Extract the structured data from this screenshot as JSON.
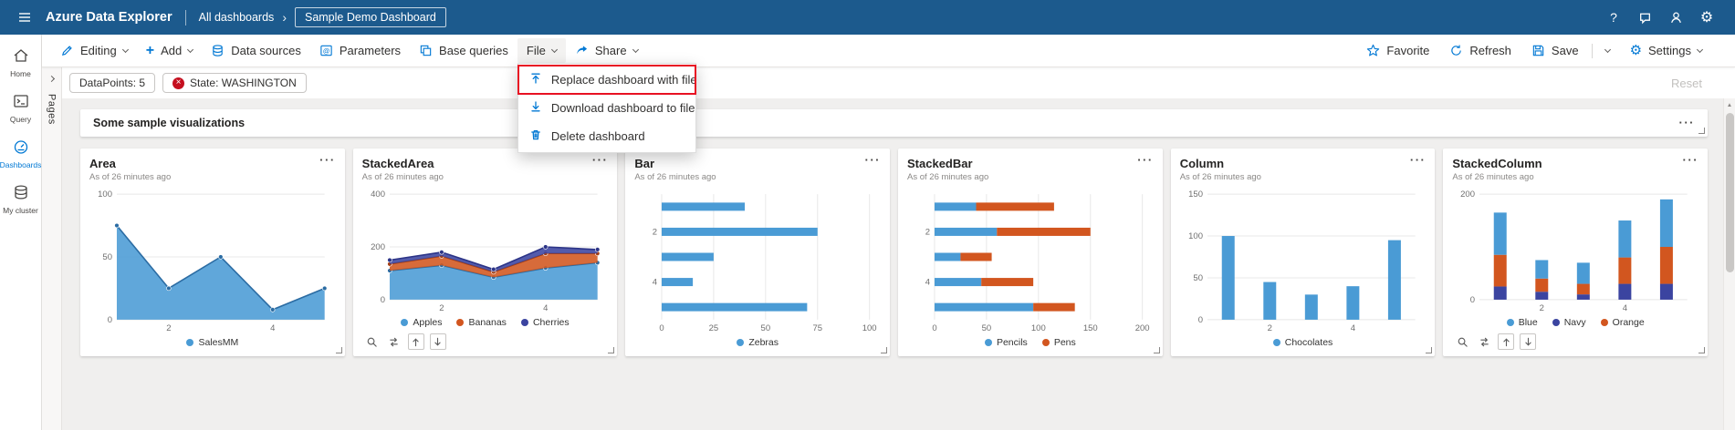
{
  "topbar": {
    "title": "Azure Data Explorer",
    "breadcrumb_root": "All dashboards",
    "dashboard_name": "Sample Demo Dashboard"
  },
  "toolbar": {
    "editing": "Editing",
    "add": "Add",
    "data_sources": "Data sources",
    "parameters": "Parameters",
    "base_queries": "Base queries",
    "file": "File",
    "share": "Share",
    "favorite": "Favorite",
    "refresh": "Refresh",
    "save": "Save",
    "settings": "Settings"
  },
  "file_menu": {
    "items": [
      {
        "label": "Replace dashboard with file",
        "highlighted": true
      },
      {
        "label": "Download dashboard to file",
        "highlighted": false
      },
      {
        "label": "Delete dashboard",
        "highlighted": false
      }
    ]
  },
  "filter_bar": {
    "datapoints_pill": "DataPoints: 5",
    "state_pill": "State: WASHINGTON",
    "reset": "Reset"
  },
  "sidebar": {
    "home": "Home",
    "query": "Query",
    "dashboards": "Dashboards",
    "my_cluster": "My cluster"
  },
  "pages_panel": {
    "label": "Pages"
  },
  "text_tile": {
    "title": "Some sample visualizations"
  },
  "icons": {
    "more": "···",
    "breadcrumb_separator": "›",
    "help": "?",
    "gear": "⚙",
    "scroll_up": "▲",
    "plus": "+",
    "clear": "×"
  },
  "colors": {
    "accent": "#0078d4",
    "chart_blue": "#4a9bd5",
    "chart_orange": "#d2561f",
    "chart_navy": "#3b44a0",
    "annotation_red": "#e81123",
    "topbar_blue": "#1c5a8d"
  },
  "tiles": [
    {
      "title": "Area",
      "subtitle": "As of 26 minutes ago",
      "chart_data": {
        "type": "area",
        "x": [
          1,
          2,
          3,
          4,
          5
        ],
        "series": [
          {
            "name": "SalesMM",
            "color": "#4a9bd5",
            "line": "#2b6ca3",
            "values": [
              75,
              25,
              50,
              8,
              25
            ]
          }
        ],
        "ylim": [
          0,
          100
        ],
        "yticks": [
          0,
          50,
          100
        ],
        "xticks": [
          2,
          4
        ],
        "legend_position": "bottom"
      }
    },
    {
      "title": "StackedArea",
      "subtitle": "As of 26 minutes ago",
      "has_toolbar": true,
      "chart_data": {
        "type": "stacked-area",
        "x": [
          1,
          2,
          3,
          4,
          5
        ],
        "series": [
          {
            "name": "Apples",
            "color": "#4a9bd5",
            "line": "#2b6ca3",
            "values": [
              110,
              130,
              85,
              120,
              140
            ]
          },
          {
            "name": "Bananas",
            "color": "#d2561f",
            "line": "#a63e12",
            "values": [
              25,
              35,
              20,
              55,
              35
            ]
          },
          {
            "name": "Cherries",
            "color": "#3b44a0",
            "line": "#2c3487",
            "values": [
              15,
              15,
              10,
              25,
              15
            ]
          }
        ],
        "ylim": [
          0,
          400
        ],
        "yticks": [
          0,
          200,
          400
        ],
        "xticks": [
          2,
          4
        ],
        "legend_position": "bottom"
      }
    },
    {
      "title": "Bar",
      "subtitle": "As of 26 minutes ago",
      "chart_data": {
        "type": "bar-h",
        "categories": [
          1,
          2,
          3,
          4,
          5
        ],
        "series": [
          {
            "name": "Zebras",
            "color": "#4a9bd5",
            "values": [
              40,
              75,
              25,
              15,
              70
            ]
          }
        ],
        "xlim": [
          0,
          100
        ],
        "xticks": [
          0,
          25,
          50,
          75,
          100
        ],
        "yticks": [
          2,
          4
        ],
        "legend_position": "bottom"
      }
    },
    {
      "title": "StackedBar",
      "subtitle": "As of 26 minutes ago",
      "chart_data": {
        "type": "stacked-bar-h",
        "categories": [
          1,
          2,
          3,
          4,
          5
        ],
        "series": [
          {
            "name": "Pencils",
            "color": "#4a9bd5",
            "values": [
              40,
              60,
              25,
              45,
              95
            ]
          },
          {
            "name": "Pens",
            "color": "#d2561f",
            "values": [
              75,
              90,
              30,
              50,
              40
            ]
          }
        ],
        "xlim": [
          0,
          200
        ],
        "xticks": [
          0,
          50,
          100,
          150,
          200
        ],
        "yticks": [
          2,
          4
        ],
        "legend_position": "bottom"
      }
    },
    {
      "title": "Column",
      "subtitle": "As of 26 minutes ago",
      "chart_data": {
        "type": "column",
        "categories": [
          1,
          2,
          3,
          4,
          5
        ],
        "series": [
          {
            "name": "Chocolates",
            "color": "#4a9bd5",
            "values": [
              100,
              45,
              30,
              40,
              95
            ]
          }
        ],
        "ylim": [
          0,
          150
        ],
        "yticks": [
          0,
          50,
          100,
          150
        ],
        "xticks": [
          2,
          4
        ],
        "legend_position": "bottom"
      }
    },
    {
      "title": "StackedColumn",
      "subtitle": "As of 26 minutes ago",
      "has_toolbar": true,
      "chart_data": {
        "type": "stacked-column",
        "categories": [
          1,
          2,
          3,
          4,
          5
        ],
        "series": [
          {
            "name": "Blue",
            "color": "#4a9bd5",
            "values": [
              80,
              35,
              40,
              70,
              90
            ]
          },
          {
            "name": "Navy",
            "color": "#3b44a0",
            "values": [
              25,
              15,
              10,
              30,
              30
            ]
          },
          {
            "name": "Orange",
            "color": "#d2561f",
            "values": [
              60,
              25,
              20,
              50,
              70
            ]
          }
        ],
        "stack_order": [
          1,
          2,
          0
        ],
        "ylim": [
          0,
          200
        ],
        "yticks": [
          0,
          200
        ],
        "xticks": [
          2,
          4
        ],
        "legend_position": "bottom"
      }
    }
  ]
}
